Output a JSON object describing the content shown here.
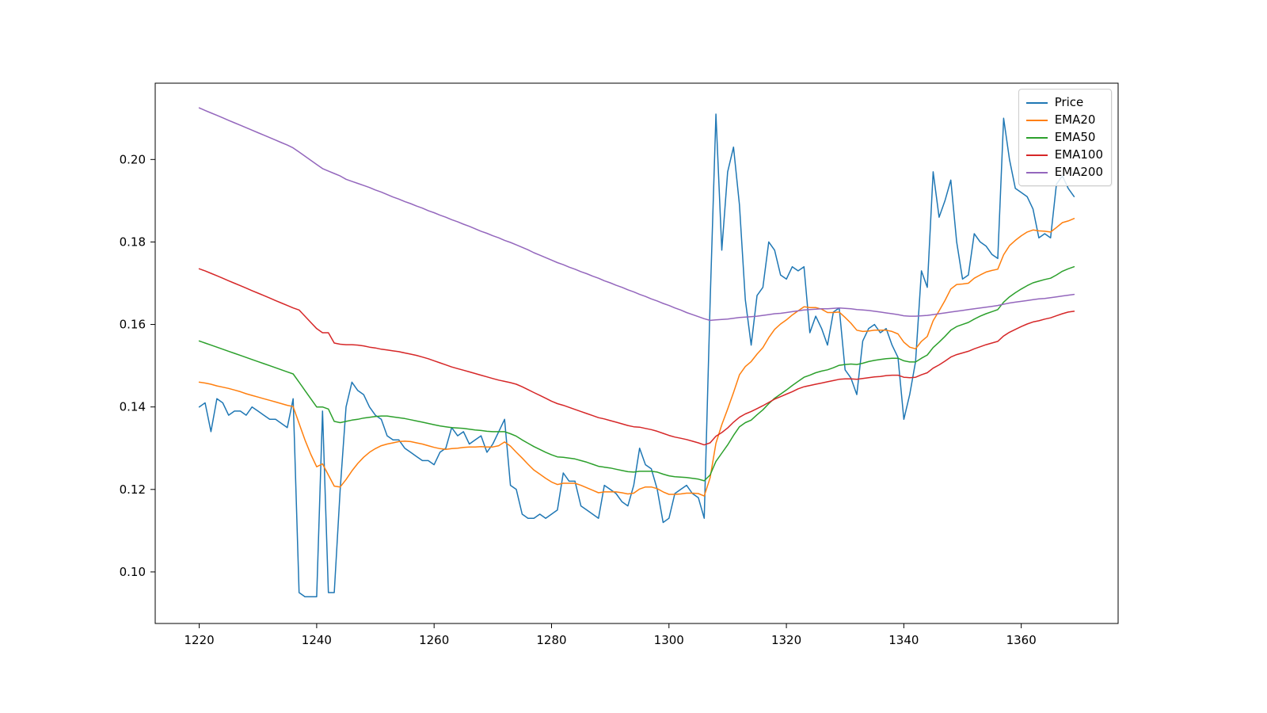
{
  "chart_data": {
    "type": "line",
    "title": "",
    "xlabel": "",
    "ylabel": "",
    "grid": false,
    "legend_position": "upper right",
    "xlim": [
      1212.5,
      1376.5
    ],
    "ylim": [
      0.0875,
      0.2185
    ],
    "xticks": [
      1220,
      1240,
      1260,
      1280,
      1300,
      1320,
      1340,
      1360
    ],
    "yticks": [
      0.1,
      0.12,
      0.14,
      0.16,
      0.18,
      0.2
    ],
    "ytick_labels": [
      "0.10",
      "0.12",
      "0.14",
      "0.16",
      "0.18",
      "0.20"
    ],
    "x": [
      1220,
      1221,
      1222,
      1223,
      1224,
      1225,
      1226,
      1227,
      1228,
      1229,
      1230,
      1231,
      1232,
      1233,
      1234,
      1235,
      1236,
      1237,
      1238,
      1239,
      1240,
      1241,
      1242,
      1243,
      1244,
      1245,
      1246,
      1247,
      1248,
      1249,
      1250,
      1251,
      1252,
      1253,
      1254,
      1255,
      1256,
      1257,
      1258,
      1259,
      1260,
      1261,
      1262,
      1263,
      1264,
      1265,
      1266,
      1267,
      1268,
      1269,
      1270,
      1271,
      1272,
      1273,
      1274,
      1275,
      1276,
      1277,
      1278,
      1279,
      1280,
      1281,
      1282,
      1283,
      1284,
      1285,
      1286,
      1287,
      1288,
      1289,
      1290,
      1291,
      1292,
      1293,
      1294,
      1295,
      1296,
      1297,
      1298,
      1299,
      1300,
      1301,
      1302,
      1303,
      1304,
      1305,
      1306,
      1307,
      1308,
      1309,
      1310,
      1311,
      1312,
      1313,
      1314,
      1315,
      1316,
      1317,
      1318,
      1319,
      1320,
      1321,
      1322,
      1323,
      1324,
      1325,
      1326,
      1327,
      1328,
      1329,
      1330,
      1331,
      1332,
      1333,
      1334,
      1335,
      1336,
      1337,
      1338,
      1339,
      1340,
      1341,
      1342,
      1343,
      1344,
      1345,
      1346,
      1347,
      1348,
      1349,
      1350,
      1351,
      1352,
      1353,
      1354,
      1355,
      1356,
      1357,
      1358,
      1359,
      1360,
      1361,
      1362,
      1363,
      1364,
      1365,
      1366,
      1367,
      1368,
      1369
    ],
    "series": [
      {
        "name": "Price",
        "color": "#1f77b4",
        "values": [
          0.14,
          0.141,
          0.134,
          0.142,
          0.141,
          0.138,
          0.139,
          0.139,
          0.138,
          0.14,
          0.139,
          0.138,
          0.137,
          0.137,
          0.136,
          0.135,
          0.142,
          0.095,
          0.094,
          0.094,
          0.094,
          0.139,
          0.095,
          0.095,
          0.12,
          0.14,
          0.146,
          0.144,
          0.143,
          0.14,
          0.138,
          0.137,
          0.133,
          0.132,
          0.132,
          0.13,
          0.129,
          0.128,
          0.127,
          0.127,
          0.126,
          0.129,
          0.13,
          0.135,
          0.133,
          0.134,
          0.131,
          0.132,
          0.133,
          0.129,
          0.131,
          0.134,
          0.137,
          0.121,
          0.12,
          0.114,
          0.113,
          0.113,
          0.114,
          0.113,
          0.114,
          0.115,
          0.124,
          0.122,
          0.122,
          0.116,
          0.115,
          0.114,
          0.113,
          0.121,
          0.12,
          0.119,
          0.117,
          0.116,
          0.121,
          0.13,
          0.126,
          0.125,
          0.12,
          0.112,
          0.113,
          0.119,
          0.12,
          0.121,
          0.119,
          0.118,
          0.113,
          0.165,
          0.211,
          0.178,
          0.197,
          0.203,
          0.189,
          0.166,
          0.155,
          0.167,
          0.169,
          0.18,
          0.178,
          0.172,
          0.171,
          0.174,
          0.173,
          0.174,
          0.158,
          0.162,
          0.159,
          0.155,
          0.163,
          0.164,
          0.149,
          0.147,
          0.143,
          0.156,
          0.159,
          0.16,
          0.158,
          0.159,
          0.155,
          0.152,
          0.137,
          0.143,
          0.151,
          0.173,
          0.169,
          0.197,
          0.186,
          0.19,
          0.195,
          0.18,
          0.171,
          0.172,
          0.182,
          0.18,
          0.179,
          0.177,
          0.176,
          0.21,
          0.2,
          0.193,
          0.192,
          0.191,
          0.188,
          0.181,
          0.182,
          0.181,
          0.194,
          0.196,
          0.193,
          0.191
        ]
      },
      {
        "name": "EMA20",
        "color": "#ff7f0e",
        "values": [
          0.146,
          0.1458,
          0.1455,
          0.1451,
          0.1448,
          0.1445,
          0.1441,
          0.1437,
          0.1432,
          0.1428,
          0.1424,
          0.142,
          0.1416,
          0.1412,
          0.1408,
          0.1404,
          0.1401,
          0.136,
          0.132,
          0.1285,
          0.1255,
          0.1262,
          0.1235,
          0.1208,
          0.1206,
          0.1224,
          0.1245,
          0.1263,
          0.1278,
          0.129,
          0.1299,
          0.1306,
          0.131,
          0.1313,
          0.1316,
          0.1317,
          0.1316,
          0.1313,
          0.131,
          0.1306,
          0.1302,
          0.1299,
          0.1297,
          0.1299,
          0.13,
          0.1302,
          0.1303,
          0.1303,
          0.1304,
          0.1303,
          0.1303,
          0.1306,
          0.1315,
          0.1305,
          0.129,
          0.1276,
          0.1261,
          0.1247,
          0.1237,
          0.1227,
          0.1218,
          0.1212,
          0.1215,
          0.1215,
          0.1215,
          0.121,
          0.1204,
          0.1198,
          0.1192,
          0.1194,
          0.1194,
          0.1194,
          0.1192,
          0.1189,
          0.1191,
          0.1201,
          0.1206,
          0.1206,
          0.1202,
          0.1194,
          0.1188,
          0.1188,
          0.1189,
          0.1191,
          0.1191,
          0.119,
          0.1184,
          0.1228,
          0.1312,
          0.1357,
          0.1395,
          0.1435,
          0.1478,
          0.1498,
          0.151,
          0.1528,
          0.1544,
          0.1568,
          0.1588,
          0.1601,
          0.1611,
          0.1623,
          0.1633,
          0.1643,
          0.1641,
          0.1641,
          0.1637,
          0.1629,
          0.1629,
          0.163,
          0.1617,
          0.1603,
          0.1586,
          0.1583,
          0.1584,
          0.1586,
          0.1586,
          0.1586,
          0.1583,
          0.1577,
          0.1557,
          0.1545,
          0.1541,
          0.1559,
          0.1571,
          0.1609,
          0.1633,
          0.1658,
          0.1686,
          0.1697,
          0.1698,
          0.17,
          0.1712,
          0.172,
          0.1727,
          0.1731,
          0.1734,
          0.1769,
          0.1791,
          0.1804,
          0.1815,
          0.1824,
          0.1829,
          0.1827,
          0.1826,
          0.1824,
          0.1835,
          0.1847,
          0.1851,
          0.1857
        ]
      },
      {
        "name": "EMA50",
        "color": "#2ca02c",
        "values": [
          0.156,
          0.1555,
          0.155,
          0.1545,
          0.154,
          0.1535,
          0.153,
          0.1525,
          0.152,
          0.1515,
          0.151,
          0.1505,
          0.15,
          0.1495,
          0.149,
          0.1485,
          0.148,
          0.146,
          0.144,
          0.142,
          0.14,
          0.14,
          0.1395,
          0.1365,
          0.1362,
          0.1365,
          0.1368,
          0.137,
          0.1373,
          0.1375,
          0.1377,
          0.1378,
          0.1378,
          0.1376,
          0.1374,
          0.1372,
          0.1369,
          0.1366,
          0.1363,
          0.136,
          0.1357,
          0.1354,
          0.1352,
          0.135,
          0.1349,
          0.1348,
          0.1346,
          0.1344,
          0.1343,
          0.1341,
          0.134,
          0.134,
          0.134,
          0.1335,
          0.1329,
          0.132,
          0.1312,
          0.1304,
          0.1297,
          0.129,
          0.1284,
          0.1279,
          0.1278,
          0.1276,
          0.1274,
          0.127,
          0.1266,
          0.1261,
          0.1256,
          0.1254,
          0.1252,
          0.1249,
          0.1246,
          0.1243,
          0.1242,
          0.1244,
          0.1244,
          0.1244,
          0.1242,
          0.1237,
          0.1233,
          0.1231,
          0.123,
          0.1229,
          0.1227,
          0.1225,
          0.1221,
          0.1235,
          0.1268,
          0.1288,
          0.1308,
          0.1331,
          0.1352,
          0.1362,
          0.1368,
          0.1381,
          0.1393,
          0.1408,
          0.1421,
          0.1431,
          0.1441,
          0.1452,
          0.1462,
          0.1472,
          0.1477,
          0.1483,
          0.1487,
          0.149,
          0.1495,
          0.1501,
          0.1503,
          0.1504,
          0.1503,
          0.1506,
          0.151,
          0.1513,
          0.1515,
          0.1517,
          0.1518,
          0.1518,
          0.1512,
          0.1509,
          0.1509,
          0.1518,
          0.1526,
          0.1544,
          0.1557,
          0.1571,
          0.1586,
          0.1595,
          0.16,
          0.1605,
          0.1613,
          0.162,
          0.1626,
          0.1631,
          0.1636,
          0.1654,
          0.1667,
          0.1677,
          0.1686,
          0.1694,
          0.1701,
          0.1705,
          0.1709,
          0.1712,
          0.172,
          0.1729,
          0.1735,
          0.174
        ]
      },
      {
        "name": "EMA100",
        "color": "#d62728",
        "values": [
          0.1735,
          0.173,
          0.1724,
          0.1718,
          0.1712,
          0.1706,
          0.17,
          0.1694,
          0.1688,
          0.1682,
          0.1676,
          0.167,
          0.1664,
          0.1658,
          0.1652,
          0.1646,
          0.164,
          0.1635,
          0.162,
          0.1605,
          0.159,
          0.158,
          0.158,
          0.1555,
          0.1552,
          0.1551,
          0.1551,
          0.155,
          0.1548,
          0.1545,
          0.1543,
          0.154,
          0.1538,
          0.1536,
          0.1534,
          0.1531,
          0.1528,
          0.1525,
          0.1521,
          0.1517,
          0.1512,
          0.1507,
          0.1502,
          0.1497,
          0.1493,
          0.1489,
          0.1485,
          0.1481,
          0.1477,
          0.1473,
          0.1469,
          0.1465,
          0.1462,
          0.1459,
          0.1455,
          0.1449,
          0.1442,
          0.1435,
          0.1428,
          0.1421,
          0.1414,
          0.1408,
          0.1404,
          0.1399,
          0.1394,
          0.1389,
          0.1384,
          0.1379,
          0.1374,
          0.1371,
          0.1367,
          0.1363,
          0.1359,
          0.1355,
          0.1352,
          0.1351,
          0.1348,
          0.1345,
          0.1341,
          0.1336,
          0.1331,
          0.1327,
          0.1324,
          0.1321,
          0.1317,
          0.1313,
          0.1308,
          0.1313,
          0.1329,
          0.1338,
          0.1349,
          0.1363,
          0.1375,
          0.1383,
          0.1389,
          0.1396,
          0.1403,
          0.1411,
          0.1419,
          0.1425,
          0.1431,
          0.1437,
          0.1444,
          0.1449,
          0.1452,
          0.1455,
          0.1458,
          0.1461,
          0.1464,
          0.1467,
          0.1468,
          0.1468,
          0.1467,
          0.1469,
          0.1471,
          0.1473,
          0.1474,
          0.1476,
          0.1477,
          0.1477,
          0.1472,
          0.1471,
          0.1472,
          0.1478,
          0.1483,
          0.1494,
          0.1502,
          0.1511,
          0.1521,
          0.1527,
          0.1531,
          0.1535,
          0.1541,
          0.1546,
          0.1551,
          0.1555,
          0.1559,
          0.1572,
          0.1581,
          0.1588,
          0.1595,
          0.1601,
          0.1606,
          0.1609,
          0.1613,
          0.1616,
          0.1621,
          0.1626,
          0.163,
          0.1632
        ]
      },
      {
        "name": "EMA200",
        "color": "#9467bd",
        "values": [
          0.2125,
          0.2119,
          0.2113,
          0.2107,
          0.2101,
          0.2095,
          0.2089,
          0.2083,
          0.2077,
          0.2071,
          0.2065,
          0.2059,
          0.2053,
          0.2047,
          0.2041,
          0.2035,
          0.2028,
          0.2018,
          0.2008,
          0.1998,
          0.1988,
          0.1978,
          0.1972,
          0.1966,
          0.196,
          0.1952,
          0.1947,
          0.1942,
          0.1937,
          0.1932,
          0.1926,
          0.1921,
          0.1915,
          0.1909,
          0.1904,
          0.1898,
          0.1893,
          0.1887,
          0.1882,
          0.1876,
          0.1871,
          0.1865,
          0.186,
          0.1854,
          0.1849,
          0.1843,
          0.1838,
          0.1832,
          0.1826,
          0.1821,
          0.1815,
          0.181,
          0.1804,
          0.1799,
          0.1793,
          0.1787,
          0.1781,
          0.1774,
          0.1768,
          0.1762,
          0.1756,
          0.175,
          0.1745,
          0.1739,
          0.1734,
          0.1728,
          0.1723,
          0.1717,
          0.1712,
          0.1706,
          0.1701,
          0.1695,
          0.169,
          0.1684,
          0.1679,
          0.1673,
          0.1668,
          0.1662,
          0.1657,
          0.1651,
          0.1646,
          0.164,
          0.1635,
          0.1629,
          0.1624,
          0.1619,
          0.1614,
          0.161,
          0.1611,
          0.1612,
          0.1613,
          0.1615,
          0.1617,
          0.1618,
          0.1619,
          0.162,
          0.1622,
          0.1624,
          0.1626,
          0.1627,
          0.1629,
          0.1631,
          0.1633,
          0.1635,
          0.1636,
          0.1637,
          0.1638,
          0.1638,
          0.1639,
          0.164,
          0.1639,
          0.1638,
          0.1636,
          0.1635,
          0.1634,
          0.1632,
          0.163,
          0.1628,
          0.1626,
          0.1624,
          0.1621,
          0.162,
          0.162,
          0.1621,
          0.1622,
          0.1624,
          0.1626,
          0.1628,
          0.163,
          0.1632,
          0.1634,
          0.1636,
          0.1638,
          0.164,
          0.1642,
          0.1644,
          0.1646,
          0.1649,
          0.1652,
          0.1654,
          0.1656,
          0.1658,
          0.166,
          0.1662,
          0.1663,
          0.1665,
          0.1667,
          0.1669,
          0.1671,
          0.1673
        ]
      }
    ]
  }
}
